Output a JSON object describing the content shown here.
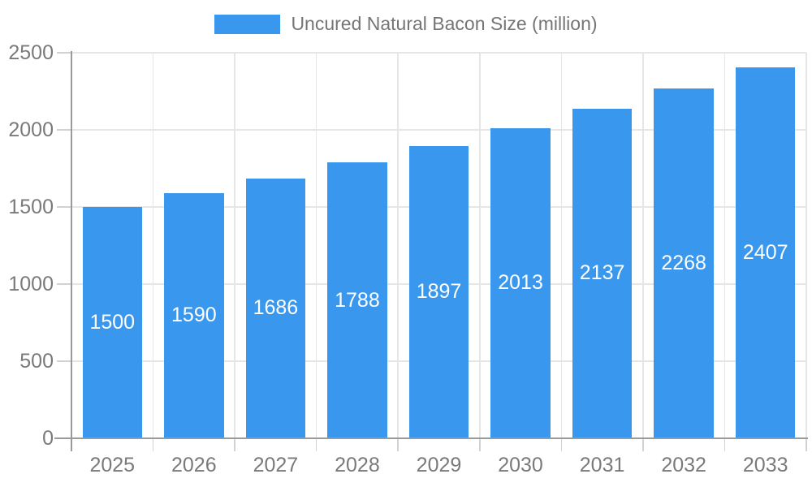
{
  "legend": {
    "label": "Uncured Natural Bacon Size (million)"
  },
  "chart_data": {
    "type": "bar",
    "title": "Uncured Natural Bacon Size (million)",
    "categories": [
      "2025",
      "2026",
      "2027",
      "2028",
      "2029",
      "2030",
      "2031",
      "2032",
      "2033"
    ],
    "values": [
      1500,
      1590,
      1686,
      1788,
      1897,
      2013,
      2137,
      2268,
      2407
    ],
    "series": [
      {
        "name": "Uncured Natural Bacon Size (million)",
        "values": [
          1500,
          1590,
          1686,
          1788,
          1897,
          2013,
          2137,
          2268,
          2407
        ]
      }
    ],
    "xlabel": "",
    "ylabel": "",
    "ylim": [
      0,
      2500
    ],
    "yticks": [
      0,
      500,
      1000,
      1500,
      2000,
      2500
    ],
    "grid": true,
    "legend_position": "top",
    "bar_value_labels": true,
    "colors": {
      "bar": "#3998EE",
      "bar_label": "#FFFFFF",
      "axis_text": "#7A7A7A",
      "legend_text": "#757575",
      "gridline": "#E6E6E6",
      "axis_line": "#9A9A9A",
      "tick": "#D2D2D2",
      "background": "#FFFFFF"
    }
  }
}
